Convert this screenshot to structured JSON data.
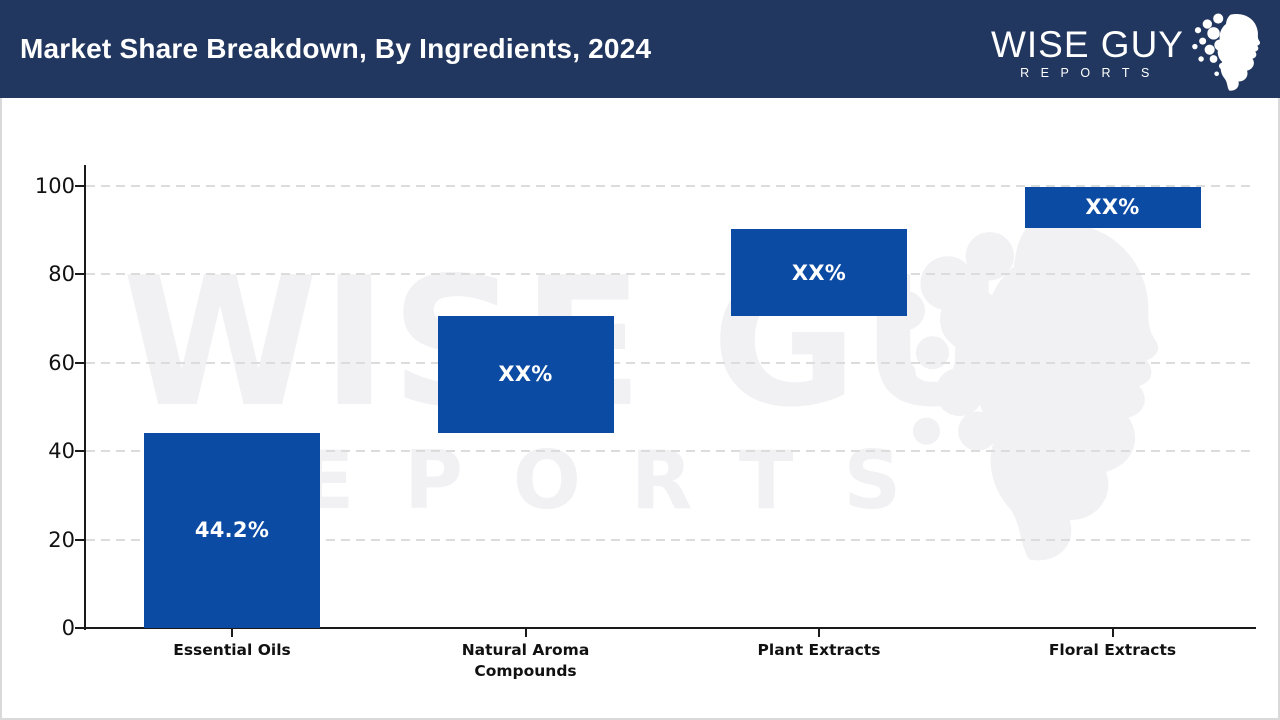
{
  "header": {
    "title": "Market Share Breakdown, By Ingredients, 2024",
    "bg_color": "#21375F",
    "logo": {
      "line1": "WISE GUY",
      "line2": "REPORTS"
    }
  },
  "watermark": {
    "line1": "WISE GUY",
    "line2": "REPORTS"
  },
  "chart_data": {
    "type": "bar",
    "subtype": "waterfall-segments",
    "title": "Market Share Breakdown, By Ingredients, 2024",
    "categories": [
      "Essential Oils",
      "Natural Aroma Compounds",
      "Plant Extracts",
      "Floral Extracts"
    ],
    "series": [
      {
        "name": "Market share (%)",
        "segments": [
          {
            "category": "Essential Oils",
            "from": 0,
            "to": 44.2,
            "label": "44.2%"
          },
          {
            "category": "Natural Aroma Compounds",
            "from": 44.2,
            "to": 70.5,
            "label": "XX%"
          },
          {
            "category": "Plant Extracts",
            "from": 70.5,
            "to": 90.3,
            "label": "XX%"
          },
          {
            "category": "Floral Extracts",
            "from": 90.6,
            "to": 99.7,
            "label": "XX%"
          }
        ]
      }
    ],
    "xlabel": "",
    "ylabel": "",
    "ylim": [
      0,
      105
    ],
    "yticks": [
      0,
      20,
      40,
      60,
      80,
      100
    ],
    "grid": "horizontal-dashed",
    "legend_position": "none",
    "colors": {
      "bar": "#0C4BA3",
      "bar_label": "#FFFFFF",
      "axis": "#1A1A1A",
      "gridline": "#DCDCDC",
      "tick_label": "#111111",
      "watermark": "#F1F1F4",
      "header_bg": "#21375F"
    }
  }
}
